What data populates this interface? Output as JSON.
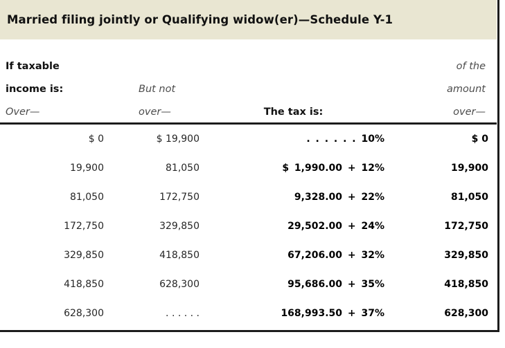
{
  "title": "Married filing jointly or Qualifying widow(er)—Schedule Y-1",
  "colors": {
    "header_bg": "#e9e6d2",
    "rule": "#1c1c1c",
    "muted_italic": "#4c4c4c",
    "text": "#000000"
  },
  "header": {
    "col1": {
      "line1": "If taxable",
      "line2": "income is:",
      "line3": "Over—"
    },
    "col2": {
      "line2": "But not",
      "line3": "over—"
    },
    "col3": {
      "line3": "The tax is:"
    },
    "col4": {
      "line1": "of the",
      "line2": "amount",
      "line3": "over—"
    }
  },
  "rows": [
    {
      "over": "$ 0",
      "but_not_over": "$ 19,900",
      "tax": ". . . . . . 10%",
      "of_amount_over": "$ 0"
    },
    {
      "over": "19,900",
      "but_not_over": "81,050",
      "tax": "$ 1,990.00 + 12%",
      "of_amount_over": "19,900"
    },
    {
      "over": "81,050",
      "but_not_over": "172,750",
      "tax": "9,328.00 + 22%",
      "of_amount_over": "81,050"
    },
    {
      "over": "172,750",
      "but_not_over": "329,850",
      "tax": "29,502.00 + 24%",
      "of_amount_over": "172,750"
    },
    {
      "over": "329,850",
      "but_not_over": "418,850",
      "tax": "67,206.00 + 32%",
      "of_amount_over": "329,850"
    },
    {
      "over": "418,850",
      "but_not_over": "628,300",
      "tax": "95,686.00 + 35%",
      "of_amount_over": "418,850"
    },
    {
      "over": "628,300",
      "but_not_over": ". . . . . .",
      "tax": "168,993.50 + 37%",
      "of_amount_over": "628,300"
    }
  ]
}
